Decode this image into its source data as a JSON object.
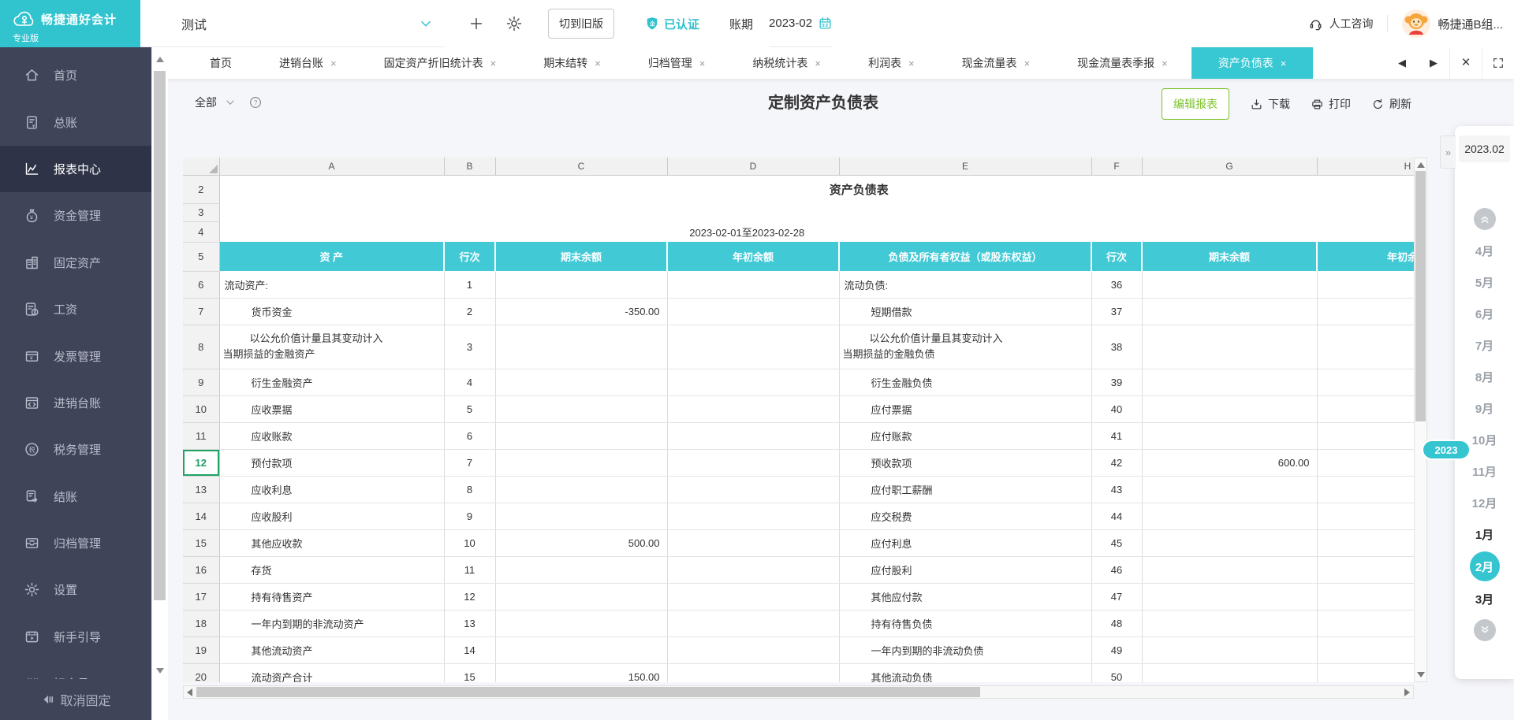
{
  "logo": {
    "title": "畅捷通好会计",
    "subtitle": "专业版"
  },
  "topbar": {
    "account": "测试",
    "switch_old": "切到旧版",
    "certified": "已认证",
    "period_label": "账期",
    "period_value": "2023-02",
    "consult": "人工咨询",
    "user": "畅捷通B组..."
  },
  "tabs": [
    {
      "label": "首页",
      "closable": false
    },
    {
      "label": "进销台账",
      "closable": true
    },
    {
      "label": "固定资产折旧统计表",
      "closable": true
    },
    {
      "label": "期末结转",
      "closable": true
    },
    {
      "label": "归档管理",
      "closable": true
    },
    {
      "label": "纳税统计表",
      "closable": true
    },
    {
      "label": "利润表",
      "closable": true
    },
    {
      "label": "现金流量表",
      "closable": true
    },
    {
      "label": "现金流量表季报",
      "closable": true
    },
    {
      "label": "资产负债表",
      "closable": true,
      "active": true
    }
  ],
  "tab_nav": {
    "prev": "◀",
    "next": "▶",
    "close": "×"
  },
  "sidebar": {
    "items": [
      {
        "key": "home",
        "icon": "home-icon",
        "label": "首页"
      },
      {
        "key": "general-ledger",
        "icon": "ledger-icon",
        "label": "总账"
      },
      {
        "key": "report-center",
        "icon": "chart-icon",
        "label": "报表中心",
        "active": true
      },
      {
        "key": "funds",
        "icon": "moneybag-icon",
        "label": "资金管理"
      },
      {
        "key": "fixed-assets",
        "icon": "building-icon",
        "label": "固定资产"
      },
      {
        "key": "salary",
        "icon": "salary-icon",
        "label": "工资"
      },
      {
        "key": "invoice",
        "icon": "invoice-icon",
        "label": "发票管理"
      },
      {
        "key": "purchase-sale",
        "icon": "stock-icon",
        "label": "进销台账"
      },
      {
        "key": "tax",
        "icon": "tax-icon",
        "label": "税务管理"
      },
      {
        "key": "closing",
        "icon": "closing-icon",
        "label": "结账"
      },
      {
        "key": "archive",
        "icon": "archive-icon",
        "label": "归档管理"
      },
      {
        "key": "settings",
        "icon": "gear-icon",
        "label": "设置"
      },
      {
        "key": "guide",
        "icon": "video-icon",
        "label": "新手引导"
      },
      {
        "key": "member",
        "icon": "quote-icon",
        "label": "好会员",
        "partial": true
      }
    ],
    "unpin": "取消固定"
  },
  "toolbar": {
    "filter": "全部",
    "title": "定制资产负债表",
    "edit": "编辑报表",
    "download": "下载",
    "print": "打印",
    "refresh": "刷新"
  },
  "sheet": {
    "columns": [
      "A",
      "B",
      "C",
      "D",
      "E",
      "F",
      "G",
      "H"
    ],
    "title": "资产负债表",
    "date_range": "2023-02-01至2023-02-28",
    "header": [
      "资 产",
      "行次",
      "期末余额",
      "年初余额",
      "负债及所有者权益（或股东权益）",
      "行次",
      "期末余额",
      "年初余额"
    ],
    "rows": [
      {
        "num": "6",
        "a": "流动资产:",
        "b": "1",
        "c": "",
        "d": "",
        "e": "流动负债:",
        "f": "36",
        "g": "",
        "h": "",
        "sec": true
      },
      {
        "num": "7",
        "a": "货币资金",
        "b": "2",
        "c": "-350.00",
        "d": "",
        "e": "短期借款",
        "f": "37",
        "g": "",
        "h": ""
      },
      {
        "num": "8",
        "a": "以公允价值计量且其变动计入\n当期损益的金融资产",
        "b": "3",
        "c": "",
        "d": "",
        "e": "以公允价值计量且其变动计入\n当期损益的金融负债",
        "f": "38",
        "g": "",
        "h": "",
        "tall": true
      },
      {
        "num": "9",
        "a": "衍生金融资产",
        "b": "4",
        "c": "",
        "d": "",
        "e": "衍生金融负债",
        "f": "39",
        "g": "",
        "h": ""
      },
      {
        "num": "10",
        "a": "应收票据",
        "b": "5",
        "c": "",
        "d": "",
        "e": "应付票据",
        "f": "40",
        "g": "",
        "h": ""
      },
      {
        "num": "11",
        "a": "应收账款",
        "b": "6",
        "c": "",
        "d": "",
        "e": "应付账款",
        "f": "41",
        "g": "",
        "h": ""
      },
      {
        "num": "12",
        "a": "预付款项",
        "b": "7",
        "c": "",
        "d": "",
        "e": "预收款项",
        "f": "42",
        "g": "600.00",
        "h": "",
        "selected": true
      },
      {
        "num": "13",
        "a": "应收利息",
        "b": "8",
        "c": "",
        "d": "",
        "e": "应付职工薪酬",
        "f": "43",
        "g": "",
        "h": ""
      },
      {
        "num": "14",
        "a": "应收股利",
        "b": "9",
        "c": "",
        "d": "",
        "e": "应交税费",
        "f": "44",
        "g": "",
        "h": ""
      },
      {
        "num": "15",
        "a": "其他应收款",
        "b": "10",
        "c": "500.00",
        "d": "",
        "e": "应付利息",
        "f": "45",
        "g": "",
        "h": ""
      },
      {
        "num": "16",
        "a": "存货",
        "b": "11",
        "c": "",
        "d": "",
        "e": "应付股利",
        "f": "46",
        "g": "",
        "h": ""
      },
      {
        "num": "17",
        "a": "持有待售资产",
        "b": "12",
        "c": "",
        "d": "",
        "e": "其他应付款",
        "f": "47",
        "g": "",
        "h": ""
      },
      {
        "num": "18",
        "a": "一年内到期的非流动资产",
        "b": "13",
        "c": "",
        "d": "",
        "e": "持有待售负债",
        "f": "48",
        "g": "",
        "h": ""
      },
      {
        "num": "19",
        "a": "其他流动资产",
        "b": "14",
        "c": "",
        "d": "",
        "e": "一年内到期的非流动负债",
        "f": "49",
        "g": "",
        "h": ""
      },
      {
        "num": "20",
        "a": "流动资产合计",
        "b": "15",
        "c": "150.00",
        "d": "",
        "e": "其他流动负债",
        "f": "50",
        "g": "",
        "h": ""
      }
    ]
  },
  "month_panel": {
    "collapse_icon": "»",
    "current": "2023.02",
    "year_badge": "2023",
    "months": [
      {
        "label": "4月",
        "state": "muted"
      },
      {
        "label": "5月",
        "state": "muted"
      },
      {
        "label": "6月",
        "state": "muted"
      },
      {
        "label": "7月",
        "state": "muted"
      },
      {
        "label": "8月",
        "state": "muted"
      },
      {
        "label": "9月",
        "state": "muted"
      },
      {
        "label": "10月",
        "state": "muted"
      },
      {
        "label": "11月",
        "state": "muted"
      },
      {
        "label": "12月",
        "state": "muted"
      },
      {
        "label": "1月",
        "state": "normal",
        "badge": true
      },
      {
        "label": "2月",
        "state": "active"
      },
      {
        "label": "3月",
        "state": "normal"
      }
    ]
  },
  "colors": {
    "teal": "#31c4cf",
    "header_teal": "#41c9d6",
    "sidebar": "#404459",
    "sidebar_active": "#2e3347",
    "green": "#7cc32b",
    "select_green": "#21a366"
  }
}
